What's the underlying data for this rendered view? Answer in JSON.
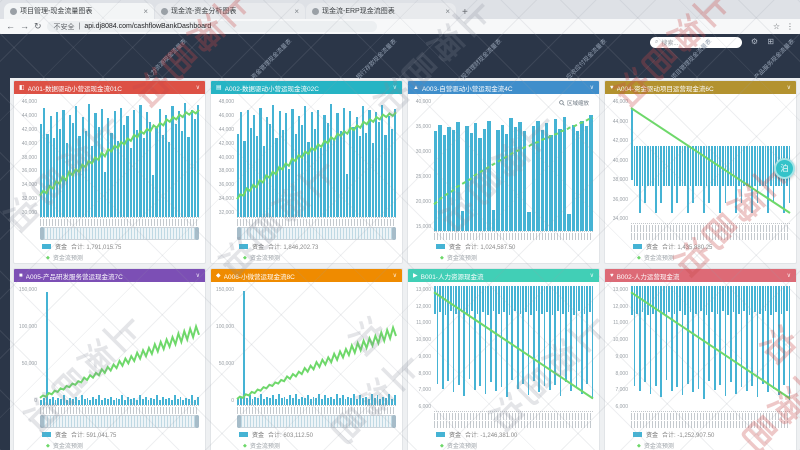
{
  "browser": {
    "tabs": [
      {
        "title": "项目管理-现金流量图表"
      },
      {
        "title": "现金流-资金分析图表"
      },
      {
        "title": "现金流-ERP现金流图表"
      }
    ],
    "close_label": "×",
    "new_tab_label": "+",
    "nav_back": "←",
    "nav_forward": "→",
    "nav_reload": "↻",
    "security_label": "不安全",
    "url": "api.dj8084.com/cashflowBankDashboard",
    "bookmark_star": "☆",
    "menu_dots": "⋮"
  },
  "appbar": {
    "menu_icon": "≡",
    "search_placeholder": "搜索...",
    "search_icon": "⌕",
    "gear_icon": "⚙",
    "grid_icon": "⊞",
    "rotated_labels": [
      "人力资源现金流量表",
      "资金管理现金流量表",
      "银行存款现金流量表",
      "投资理财现金流量表",
      "应收应付现金流量表",
      "项目管理现金流量表",
      "产品服务现金流量表"
    ]
  },
  "watermark": {
    "text": "上海邑泊"
  },
  "floating_button": {
    "label": "泊",
    "color": "#35c3c9"
  },
  "shared": {
    "series_label": "资金",
    "note_label": "资金流预测",
    "bar_color": "#45b3d4",
    "trend_color": "#6ed86a",
    "chevron": "∨",
    "zoom_tool_label": "区域缩放"
  },
  "panels": [
    {
      "title": "A001-数据驱动小营运现金流01C",
      "color": "#dd5145",
      "icon": "◧",
      "legend_total": "合计: 1,791,015.75",
      "has_navigator": true,
      "zoom_tool": false,
      "extra_xtex": false,
      "chart_data": {
        "type": "bar",
        "mode": "up",
        "trend_dashed": false,
        "y_ticks": [
          "46,000",
          "44,000",
          "42,000",
          "40,000",
          "38,000",
          "36,000",
          "34,000",
          "32,000",
          "30,000"
        ],
        "bars": [
          78,
          92,
          70,
          85,
          66,
          88,
          74,
          90,
          62,
          86,
          79,
          93,
          68,
          84,
          72,
          95,
          60,
          87,
          76,
          91,
          38,
          83,
          71,
          89,
          64,
          92,
          77,
          85,
          58,
          90,
          73,
          94,
          66,
          88,
          80,
          35,
          75,
          91,
          69,
          86,
          63,
          93,
          78,
          89,
          72,
          96,
          67,
          90,
          82,
          94
        ],
        "trend": [
          18,
          22,
          20,
          26,
          24,
          30,
          28,
          34,
          31,
          38,
          35,
          40,
          38,
          44,
          42,
          47,
          45,
          50,
          48,
          54,
          51,
          57,
          55,
          60,
          58,
          63,
          61,
          66,
          64,
          69,
          67,
          72,
          70,
          74,
          72,
          77,
          75,
          79,
          77,
          82,
          80,
          84,
          82,
          86,
          84,
          88,
          86,
          89,
          87,
          90
        ]
      }
    },
    {
      "title": "A002-数据驱动小营运现金流02C",
      "color": "#26b4c4",
      "icon": "▤",
      "legend_total": "合计: 1,846,202.73",
      "has_navigator": true,
      "zoom_tool": false,
      "extra_xtex": false,
      "chart_data": {
        "type": "bar",
        "mode": "up",
        "trend_dashed": false,
        "y_ticks": [
          "48,000",
          "46,000",
          "44,000",
          "42,000",
          "40,000",
          "38,000",
          "36,000",
          "34,000",
          "32,000"
        ],
        "bars": [
          70,
          88,
          64,
          90,
          75,
          86,
          68,
          92,
          60,
          84,
          78,
          94,
          66,
          89,
          73,
          87,
          40,
          91,
          70,
          85,
          77,
          93,
          63,
          88,
          74,
          90,
          58,
          86,
          79,
          95,
          65,
          87,
          72,
          92,
          36,
          89,
          76,
          84,
          68,
          93,
          71,
          90,
          62,
          88,
          80,
          94,
          69,
          85,
          74,
          91
        ],
        "trend": [
          15,
          19,
          18,
          24,
          22,
          27,
          25,
          31,
          29,
          35,
          33,
          38,
          36,
          42,
          40,
          45,
          43,
          49,
          47,
          52,
          50,
          55,
          53,
          58,
          56,
          61,
          59,
          64,
          62,
          67,
          65,
          70,
          68,
          72,
          70,
          75,
          73,
          77,
          75,
          80,
          78,
          82,
          80,
          84,
          82,
          86,
          84,
          87,
          85,
          88
        ]
      }
    },
    {
      "title": "A003-自营驱动小营运现金流4C",
      "color": "#3f8ecb",
      "icon": "▲",
      "legend_total": "合计: 1,024,587.50",
      "has_navigator": false,
      "zoom_tool": true,
      "extra_xtex": false,
      "chart_data": {
        "type": "bar",
        "mode": "up",
        "trend_dashed": true,
        "y_ticks": [
          "40,000",
          "35,000",
          "30,000",
          "25,000",
          "20,000",
          "15,000"
        ],
        "bars": [
          75,
          80,
          72,
          78,
          76,
          82,
          15,
          79,
          74,
          81,
          70,
          77,
          83,
          16,
          76,
          80,
          73,
          85,
          78,
          82,
          75,
          14,
          79,
          83,
          76,
          81,
          72,
          84,
          77,
          86,
          13,
          80,
          75,
          83,
          79,
          87
        ],
        "trend": [
          20,
          23,
          26,
          28,
          30,
          33,
          35,
          37,
          39,
          42,
          44,
          46,
          48,
          50,
          52,
          54,
          56,
          58,
          60,
          61,
          63,
          64,
          66,
          67,
          69,
          70,
          72,
          73,
          75,
          76,
          78,
          79,
          81,
          82,
          84,
          85
        ]
      }
    },
    {
      "title": "A004-资金驱动项目运营现金流6C",
      "color": "#b3922f",
      "icon": "♥",
      "legend_total": "合计: 1,435,880.25",
      "has_navigator": false,
      "zoom_tool": false,
      "extra_xtex": true,
      "chart_data": {
        "type": "bar",
        "mode": "hang",
        "trend_dashed": false,
        "y_ticks": [
          "46,000",
          "44,000",
          "42,000",
          "40,000",
          "38,000",
          "36,000",
          "34,000"
        ],
        "bars": [
          [
            6,
            58
          ],
          [
            30,
            32
          ],
          [
            30,
            32
          ],
          [
            30,
            54
          ],
          [
            30,
            32
          ],
          [
            30,
            46
          ],
          [
            30,
            32
          ],
          [
            30,
            32
          ],
          [
            30,
            32
          ],
          [
            30,
            54
          ],
          [
            30,
            32
          ],
          [
            30,
            46
          ],
          [
            30,
            32
          ],
          [
            30,
            32
          ],
          [
            30,
            32
          ],
          [
            30,
            54
          ],
          [
            30,
            32
          ],
          [
            30,
            46
          ],
          [
            30,
            32
          ],
          [
            30,
            32
          ],
          [
            30,
            32
          ],
          [
            30,
            54
          ],
          [
            30,
            32
          ],
          [
            30,
            46
          ],
          [
            30,
            32
          ],
          [
            30,
            32
          ],
          [
            30,
            32
          ],
          [
            30,
            54
          ],
          [
            30,
            32
          ],
          [
            30,
            46
          ],
          [
            30,
            32
          ],
          [
            30,
            32
          ],
          [
            30,
            32
          ],
          [
            30,
            54
          ],
          [
            30,
            32
          ],
          [
            30,
            46
          ],
          [
            30,
            32
          ],
          [
            30,
            32
          ],
          [
            30,
            32
          ],
          [
            30,
            54
          ],
          [
            30,
            32
          ],
          [
            30,
            46
          ],
          [
            30,
            32
          ],
          [
            30,
            32
          ],
          [
            30,
            32
          ],
          [
            30,
            54
          ],
          [
            30,
            32
          ],
          [
            30,
            46
          ],
          [
            30,
            32
          ],
          [
            30,
            32
          ],
          [
            30,
            32
          ],
          [
            30,
            54
          ],
          [
            30,
            32
          ],
          [
            30,
            46
          ],
          [
            30,
            32
          ],
          [
            30,
            32
          ],
          [
            30,
            32
          ],
          [
            30,
            54
          ],
          [
            30,
            32
          ],
          [
            30,
            46
          ]
        ],
        "trend": [
          92,
          8
        ]
      }
    },
    {
      "title": "A005-产品研发服务营运现金流7C",
      "color": "#7c4fb5",
      "icon": "■",
      "legend_total": "合计: 591,041.75",
      "has_navigator": true,
      "zoom_tool": false,
      "extra_xtex": false,
      "chart_data": {
        "type": "bar",
        "mode": "up",
        "trend_dashed": false,
        "y_ticks": [
          "150,000",
          "100,000",
          "50,000",
          "0"
        ],
        "bars": [
          4,
          6,
          95,
          5,
          7,
          4,
          6,
          5,
          8,
          4,
          6,
          5,
          7,
          4,
          8,
          5,
          6,
          4,
          7,
          5,
          8,
          4,
          6,
          5,
          7,
          4,
          6,
          5,
          8,
          4,
          7,
          5,
          6,
          4,
          8,
          5,
          7,
          4,
          6,
          5,
          8,
          4,
          7,
          5,
          6,
          4,
          8,
          5,
          7,
          4,
          6,
          5,
          8,
          4,
          7
        ],
        "trend": [
          6,
          8,
          7,
          10,
          9,
          12,
          11,
          14,
          13,
          16,
          15,
          18,
          17,
          20,
          19,
          23,
          21,
          25,
          23,
          27,
          25,
          30,
          27,
          32,
          29,
          34,
          31,
          37,
          33,
          39,
          35,
          41,
          37,
          44,
          39,
          46,
          41,
          48,
          43,
          51,
          45,
          53,
          47,
          55,
          49,
          57,
          51,
          60,
          53,
          62,
          55,
          64,
          57,
          66,
          59
        ]
      }
    },
    {
      "title": "A006-小微营运现金流8C",
      "color": "#ef8b00",
      "icon": "◆",
      "legend_total": "合计: 603,112.50",
      "has_navigator": true,
      "zoom_tool": false,
      "extra_xtex": false,
      "chart_data": {
        "type": "bar",
        "mode": "up",
        "trend_dashed": false,
        "y_ticks": [
          "150,000",
          "100,000",
          "50,000",
          "0"
        ],
        "bars": [
          5,
          7,
          96,
          6,
          8,
          5,
          7,
          6,
          9,
          5,
          7,
          6,
          8,
          5,
          9,
          6,
          7,
          5,
          8,
          6,
          9,
          5,
          7,
          6,
          8,
          5,
          7,
          6,
          9,
          5,
          8,
          6,
          7,
          5,
          9,
          6,
          8,
          5,
          7,
          6,
          9,
          5,
          8,
          6,
          7,
          5,
          9,
          6,
          8,
          5,
          7,
          6,
          9,
          5,
          8
        ],
        "trend": [
          5,
          7,
          6,
          9,
          8,
          11,
          10,
          13,
          12,
          15,
          14,
          17,
          16,
          19,
          18,
          21,
          20,
          24,
          22,
          26,
          24,
          28,
          26,
          31,
          28,
          33,
          30,
          36,
          32,
          38,
          34,
          40,
          36,
          43,
          38,
          45,
          40,
          47,
          42,
          50,
          44,
          52,
          46,
          54,
          48,
          56,
          50,
          58,
          52,
          61,
          54,
          63,
          56,
          65,
          58
        ]
      }
    },
    {
      "title": "B001-人力资源现金流",
      "color": "#41cfb6",
      "icon": "▶",
      "legend_total": "合计: -1,246,381.00",
      "has_navigator": false,
      "zoom_tool": false,
      "extra_xtex": true,
      "chart_data": {
        "type": "bar",
        "mode": "hang",
        "top": 0,
        "trend_dashed": false,
        "y_ticks": [
          "13,000",
          "12,000",
          "11,000",
          "10,000",
          "9,000",
          "8,000",
          "7,000",
          "6,000"
        ],
        "bars": [
          22,
          78,
          21,
          82,
          23,
          76,
          20,
          85,
          22,
          79,
          21,
          88,
          23,
          74,
          20,
          83,
          22,
          80,
          21,
          86,
          23,
          77,
          20,
          84,
          22,
          81,
          21,
          89,
          23,
          75,
          20,
          82,
          22,
          78,
          21,
          87,
          23,
          76,
          20,
          85,
          22,
          80,
          21,
          83,
          23,
          79,
          20,
          88,
          22,
          77,
          21,
          84,
          23,
          81,
          20,
          86,
          22,
          78,
          21,
          90
        ],
        "trend": [
          95,
          10
        ]
      }
    },
    {
      "title": "B002-人力运营现金流",
      "color": "#dd6a76",
      "icon": "♥",
      "legend_total": "合计: -1,252,907.50",
      "has_navigator": false,
      "zoom_tool": false,
      "extra_xtex": true,
      "chart_data": {
        "type": "bar",
        "mode": "hang",
        "top": 0,
        "trend_dashed": false,
        "y_ticks": [
          "13,000",
          "12,000",
          "11,000",
          "10,000",
          "9,000",
          "8,000",
          "7,000",
          "6,000"
        ],
        "bars": [
          23,
          80,
          22,
          84,
          21,
          77,
          23,
          86,
          22,
          80,
          20,
          89,
          23,
          75,
          21,
          84,
          22,
          81,
          20,
          87,
          23,
          78,
          21,
          85,
          22,
          82,
          20,
          90,
          23,
          76,
          21,
          83,
          22,
          79,
          20,
          88,
          23,
          77,
          21,
          86,
          22,
          81,
          20,
          84,
          23,
          80,
          21,
          89,
          22,
          78,
          20,
          85,
          23,
          82,
          21,
          87,
          22,
          79,
          20,
          91
        ],
        "trend": [
          95,
          10
        ]
      }
    }
  ]
}
